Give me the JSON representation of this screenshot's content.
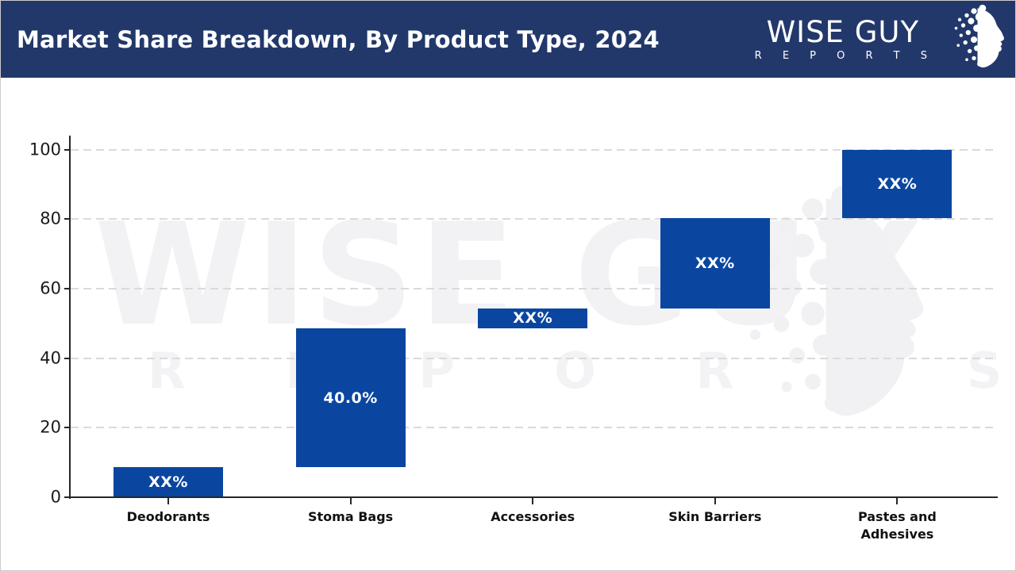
{
  "header": {
    "title": "Market Share Breakdown, By Product Type, 2024",
    "background_color": "#22386B",
    "logo": {
      "line1": "WISE GUY",
      "line2": "R E P O R T S"
    }
  },
  "watermark": {
    "line1": "WISE GUY",
    "line2": "R E P O R T S"
  },
  "chart_data": {
    "type": "bar",
    "subtype": "waterfall",
    "title": "Market Share Breakdown, By Product Type, 2024",
    "xlabel": "",
    "ylabel": "",
    "ylim": [
      0,
      100
    ],
    "y_ticks": [
      0,
      20,
      40,
      60,
      80,
      100
    ],
    "grid": "horizontal dashed",
    "legend": "none",
    "bar_color": "#0A46A0",
    "axis_color": "#262626",
    "categories": [
      "Deodorants",
      "Stoma Bags",
      "Accessories",
      "Skin Barriers",
      "Pastes and\nAdhesives"
    ],
    "segments": [
      {
        "label": "Deodorants",
        "start": 0,
        "end": 8.6,
        "value_display": "XX%"
      },
      {
        "label": "Stoma Bags",
        "start": 8.6,
        "end": 48.6,
        "value_display": "40.0%"
      },
      {
        "label": "Accessories",
        "start": 48.6,
        "end": 54.3,
        "value_display": "XX%"
      },
      {
        "label": "Skin Barriers",
        "start": 54.3,
        "end": 80.3,
        "value_display": "XX%"
      },
      {
        "label": "Pastes and Adhesives",
        "start": 80.3,
        "end": 100,
        "value_display": "XX%"
      }
    ]
  }
}
